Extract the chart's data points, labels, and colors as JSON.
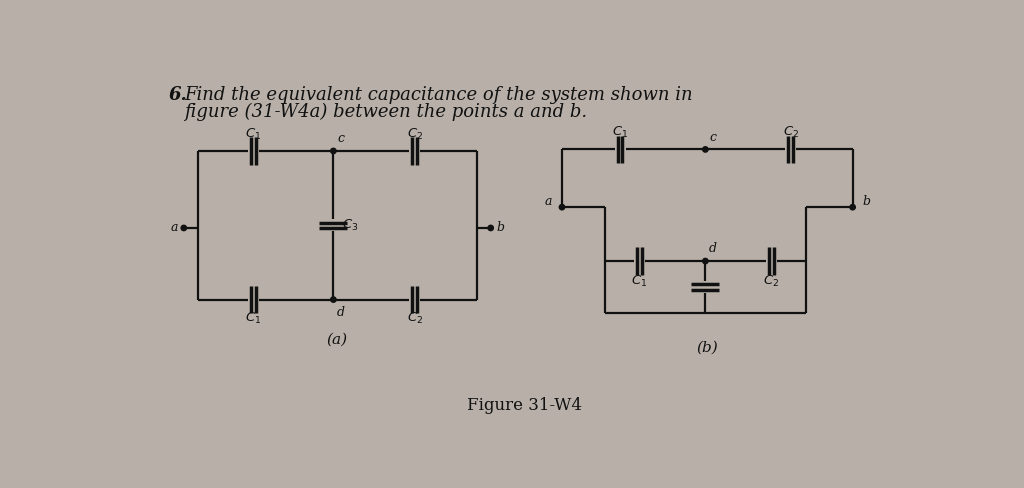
{
  "bg_color": "#b8b0a8",
  "text_color": "#111111",
  "line_color": "#111111",
  "figure_label": "Figure 31-W4",
  "label_a": "(a)",
  "label_b": "(b)"
}
